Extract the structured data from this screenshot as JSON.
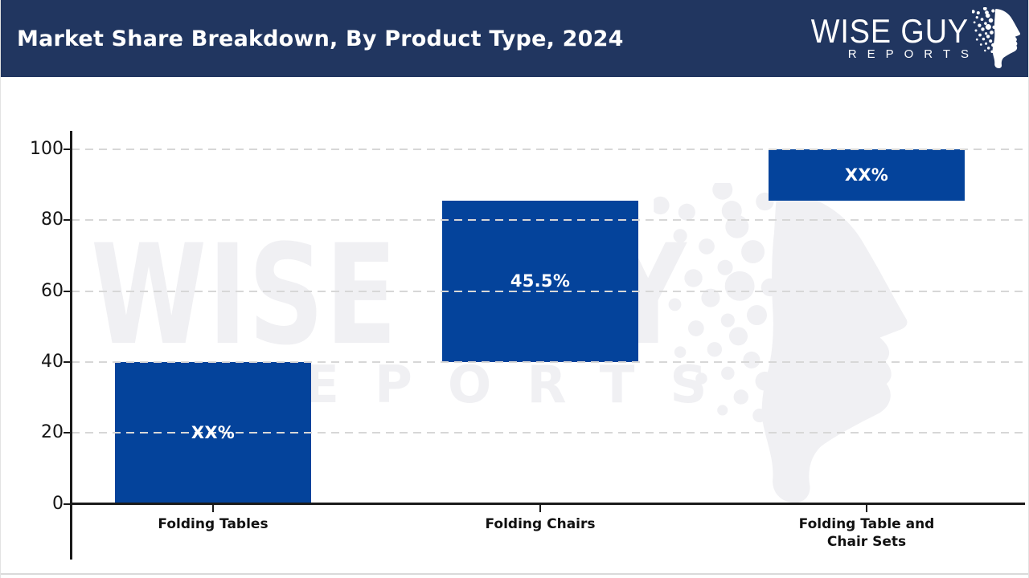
{
  "header": {
    "title": "Market Share Breakdown, By Product Type, 2024",
    "logo_line1": "WISE GUY",
    "logo_line2": "REPORTS",
    "bg_color": "#213660"
  },
  "watermark": {
    "text_large": "WISE GUY",
    "text_small": "REPORTS",
    "color": "#f0f0f3"
  },
  "chart_data": {
    "type": "bar",
    "subtype": "waterfall",
    "title": "Market Share Breakdown, By Product Type, 2024",
    "categories": [
      "Folding Tables",
      "Folding Chairs",
      "Folding Table and Chair Sets"
    ],
    "segments": [
      {
        "category": "Folding Tables",
        "start": 0,
        "end": 40,
        "value_label": "XX%"
      },
      {
        "category": "Folding Chairs",
        "start": 40,
        "end": 85.5,
        "value_label": "45.5%"
      },
      {
        "category": "Folding Table and Chair Sets",
        "start": 85.5,
        "end": 100,
        "value_label": "XX%"
      }
    ],
    "xlabel": "",
    "ylabel": "",
    "yticks": [
      0,
      20,
      40,
      60,
      80,
      100
    ],
    "ylim": [
      0,
      105
    ],
    "grid": true,
    "gridline_style": "dashed",
    "gridline_color": "#d7d7d7",
    "bar_color": "#04439b",
    "bar_label_color": "#ffffff",
    "axis_color": "#1a1a1a",
    "legend": false
  }
}
